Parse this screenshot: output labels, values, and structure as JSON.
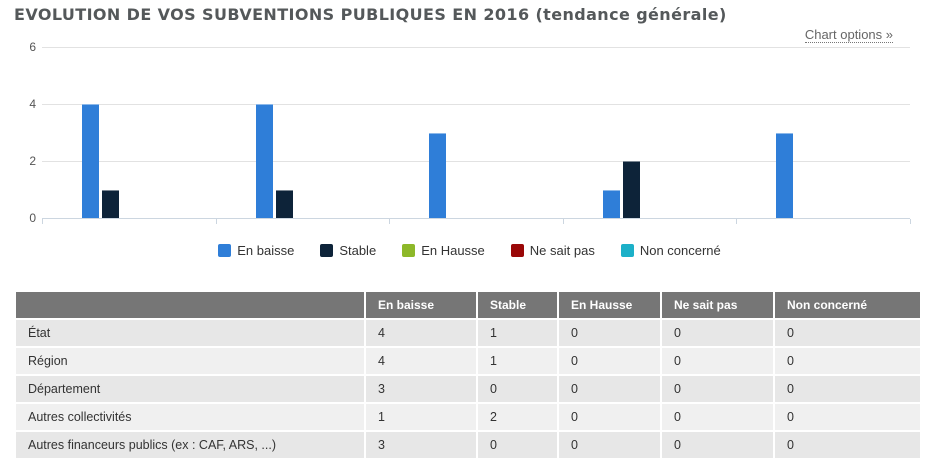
{
  "header": {
    "title": "EVOLUTION DE VOS SUBVENTIONS PUBLIQUES EN 2016 (tendance générale)",
    "chart_options_label": "Chart options »"
  },
  "chart_data": {
    "type": "bar",
    "title": "EVOLUTION DE VOS SUBVENTIONS PUBLIQUES EN 2016 (tendance générale)",
    "categories": [
      "État",
      "Région",
      "Département",
      "Autres collectivités",
      "Autres financeurs publics (ex : CAF, ARS, ...)"
    ],
    "series": [
      {
        "name": "En baisse",
        "color": "#2f7ed8",
        "values": [
          4,
          4,
          3,
          1,
          3
        ]
      },
      {
        "name": "Stable",
        "color": "#0d2339",
        "values": [
          1,
          1,
          0,
          2,
          0
        ]
      },
      {
        "name": "En Hausse",
        "color": "#8db829",
        "values": [
          0,
          0,
          0,
          0,
          0
        ]
      },
      {
        "name": "Ne sait pas",
        "color": "#9a0707",
        "values": [
          0,
          0,
          0,
          0,
          0
        ]
      },
      {
        "name": "Non concerné",
        "color": "#1cb0c8",
        "values": [
          0,
          0,
          0,
          0,
          0
        ]
      }
    ],
    "xlabel": "",
    "ylabel": "",
    "ylim": [
      0,
      6
    ],
    "yticks": [
      0,
      2,
      4,
      6
    ],
    "grid": true,
    "x_tick_labels_visible": false,
    "legend_position": "bottom"
  },
  "table": {
    "columns": [
      "",
      "En baisse",
      "Stable",
      "En Hausse",
      "Ne sait pas",
      "Non concerné"
    ],
    "rows": [
      {
        "label": "État",
        "values": [
          4,
          1,
          0,
          0,
          0
        ]
      },
      {
        "label": "Région",
        "values": [
          4,
          1,
          0,
          0,
          0
        ]
      },
      {
        "label": "Département",
        "values": [
          3,
          0,
          0,
          0,
          0
        ]
      },
      {
        "label": "Autres collectivités",
        "values": [
          1,
          2,
          0,
          0,
          0
        ]
      },
      {
        "label": "Autres financeurs publics (ex : CAF, ARS, ...)",
        "values": [
          3,
          0,
          0,
          0,
          0
        ]
      }
    ]
  }
}
